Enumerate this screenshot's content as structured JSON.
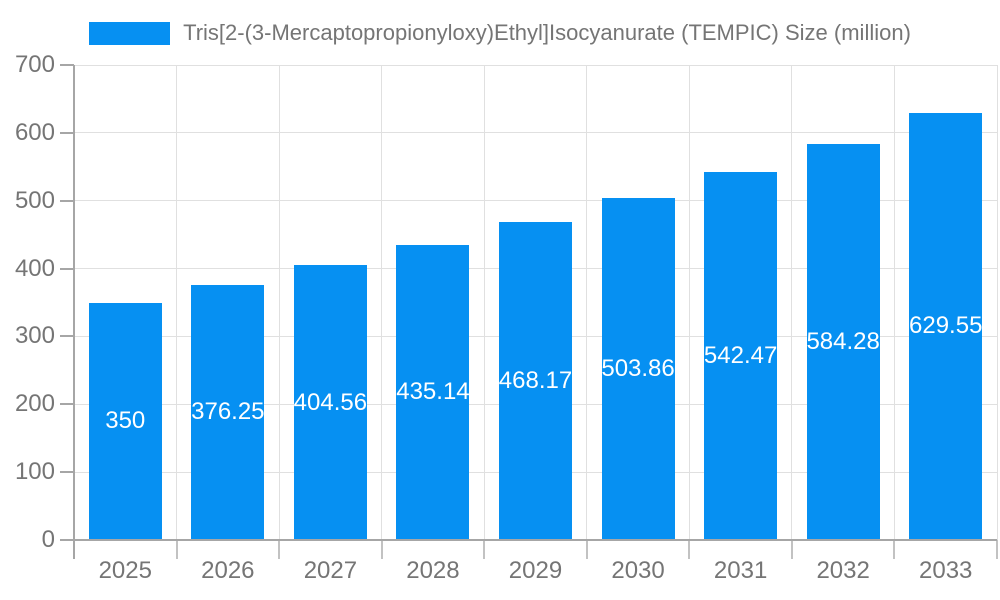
{
  "chart_data": {
    "type": "bar",
    "title": "Tris[2-(3-Mercaptopropionyloxy)Ethyl]Isocyanurate (TEMPIC) Size (million)",
    "categories": [
      "2025",
      "2026",
      "2027",
      "2028",
      "2029",
      "2030",
      "2031",
      "2032",
      "2033"
    ],
    "values": [
      350,
      376.25,
      404.56,
      435.14,
      468.17,
      503.86,
      542.47,
      584.28,
      629.55
    ],
    "value_labels": [
      "350",
      "376.25",
      "404.56",
      "435.14",
      "468.17",
      "503.86",
      "542.47",
      "584.28",
      "629.55"
    ],
    "xlabel": "",
    "ylabel": "",
    "ylim": [
      0,
      700
    ],
    "yticks": [
      0,
      100,
      200,
      300,
      400,
      500,
      600,
      700
    ],
    "grid": true,
    "legend_position": "top",
    "value_label_position": "inside-middle"
  },
  "colors": {
    "bar": "#0690F2",
    "grid": "#E0E0E0",
    "axis": "#A6A6A6",
    "category_tick": "#C2C2C2",
    "tick_label": "#757575",
    "title": "#757575",
    "value_label": "#FFFFFF",
    "background": "#FFFFFF"
  }
}
